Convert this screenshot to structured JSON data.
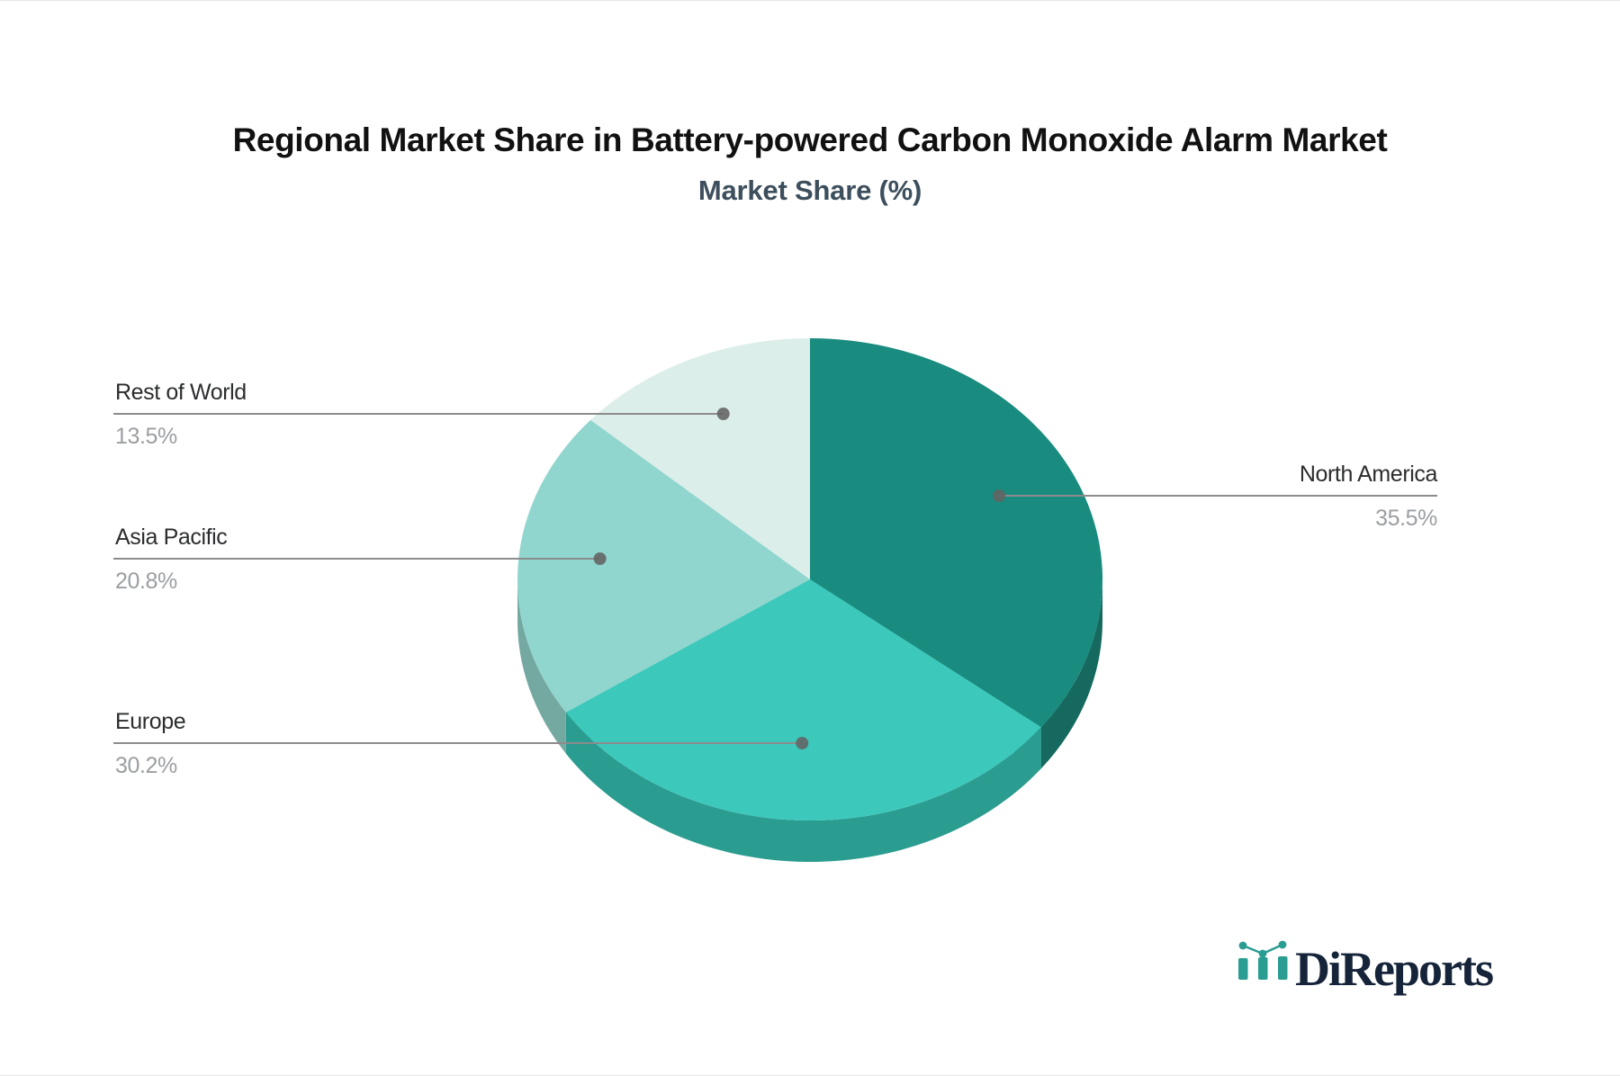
{
  "chart_data": {
    "type": "pie",
    "style": "3d",
    "title": "Regional Market Share in Battery-powered Carbon Monoxide Alarm Market",
    "subtitle": "Market Share (%)",
    "unit": "%",
    "start_angle_deg": 0,
    "direction": "clockwise",
    "legend_position": "outside-leader-lines",
    "slices": [
      {
        "label": "North America",
        "value": 35.5,
        "display_value": "35.5%",
        "color": "#198b7f",
        "side_color": "#15695f"
      },
      {
        "label": "Europe",
        "value": 30.2,
        "display_value": "30.2%",
        "color": "#3cc9bc",
        "side_color": "#2b9c90"
      },
      {
        "label": "Asia Pacific",
        "value": 20.8,
        "display_value": "20.8%",
        "color": "#90d6ce",
        "side_color": "#74a9a2"
      },
      {
        "label": "Rest of World",
        "value": 13.5,
        "display_value": "13.5%",
        "color": "#dceeea",
        "side_color": "#b9d6d1"
      }
    ]
  },
  "theme": {
    "background": "#ffffff",
    "title_color": "#111111",
    "subtitle_color": "#3d4e5c",
    "label_color": "#2b2d2e",
    "value_color": "#9b9ea1",
    "leader_line_color": "#8c8c8c",
    "leader_dot_color": "#636363"
  },
  "logo": {
    "text": "DiReports",
    "icon": "bar-chart-icon",
    "text_color": "#16243a",
    "accent_color": "#2a9d92"
  }
}
